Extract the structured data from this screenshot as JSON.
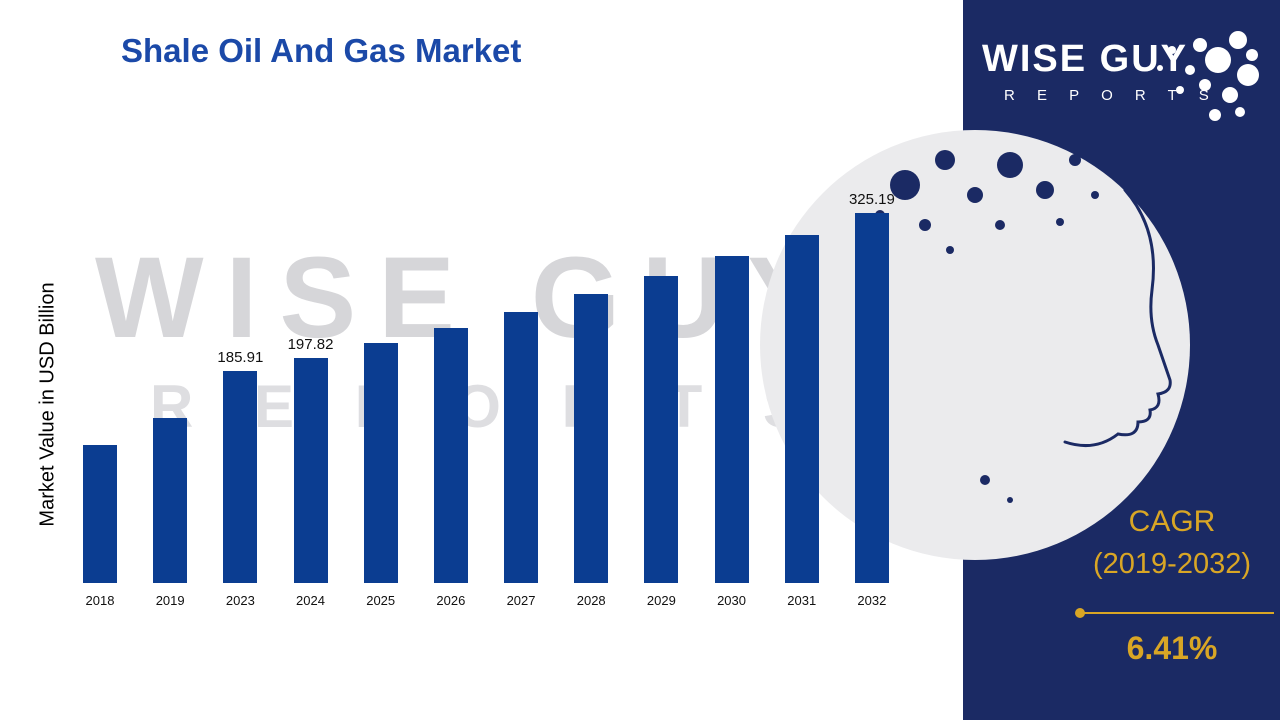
{
  "title": "Shale Oil And Gas Market",
  "y_axis_label": "Market Value in USD Billion",
  "watermark": {
    "line1": "WISE GUY",
    "line2": "R E P O R T S"
  },
  "logo": {
    "line1": "WISE GUY",
    "line2": "R E P O R T S"
  },
  "cagr": {
    "label": "CAGR",
    "range": "(2019-2032)",
    "value": "6.41%"
  },
  "colors": {
    "bar": "#0b3d91",
    "panel_navy": "#1b2a64",
    "accent_gold": "#d9a625",
    "title_blue": "#1b49a8",
    "watermark_gray": "#d6d6d9",
    "circle_gray": "#ebebed"
  },
  "chart_data": {
    "type": "bar",
    "title": "Shale Oil And Gas Market",
    "xlabel": "",
    "ylabel": "Market Value in USD Billion",
    "unit": "USD Billion",
    "categories": [
      "2018",
      "2019",
      "2023",
      "2024",
      "2025",
      "2026",
      "2027",
      "2028",
      "2029",
      "2030",
      "2031",
      "2032"
    ],
    "values": [
      121.5,
      145.0,
      185.91,
      197.82,
      210.5,
      224.0,
      238.3,
      253.6,
      269.9,
      287.2,
      305.6,
      325.19
    ],
    "value_labels": [
      "",
      "",
      "185.91",
      "197.82",
      "",
      "",
      "",
      "",
      "",
      "",
      "",
      "325.19"
    ],
    "ylim": [
      0,
      360
    ],
    "grid": false,
    "legend": false,
    "bar_color": "#0b3d91"
  }
}
